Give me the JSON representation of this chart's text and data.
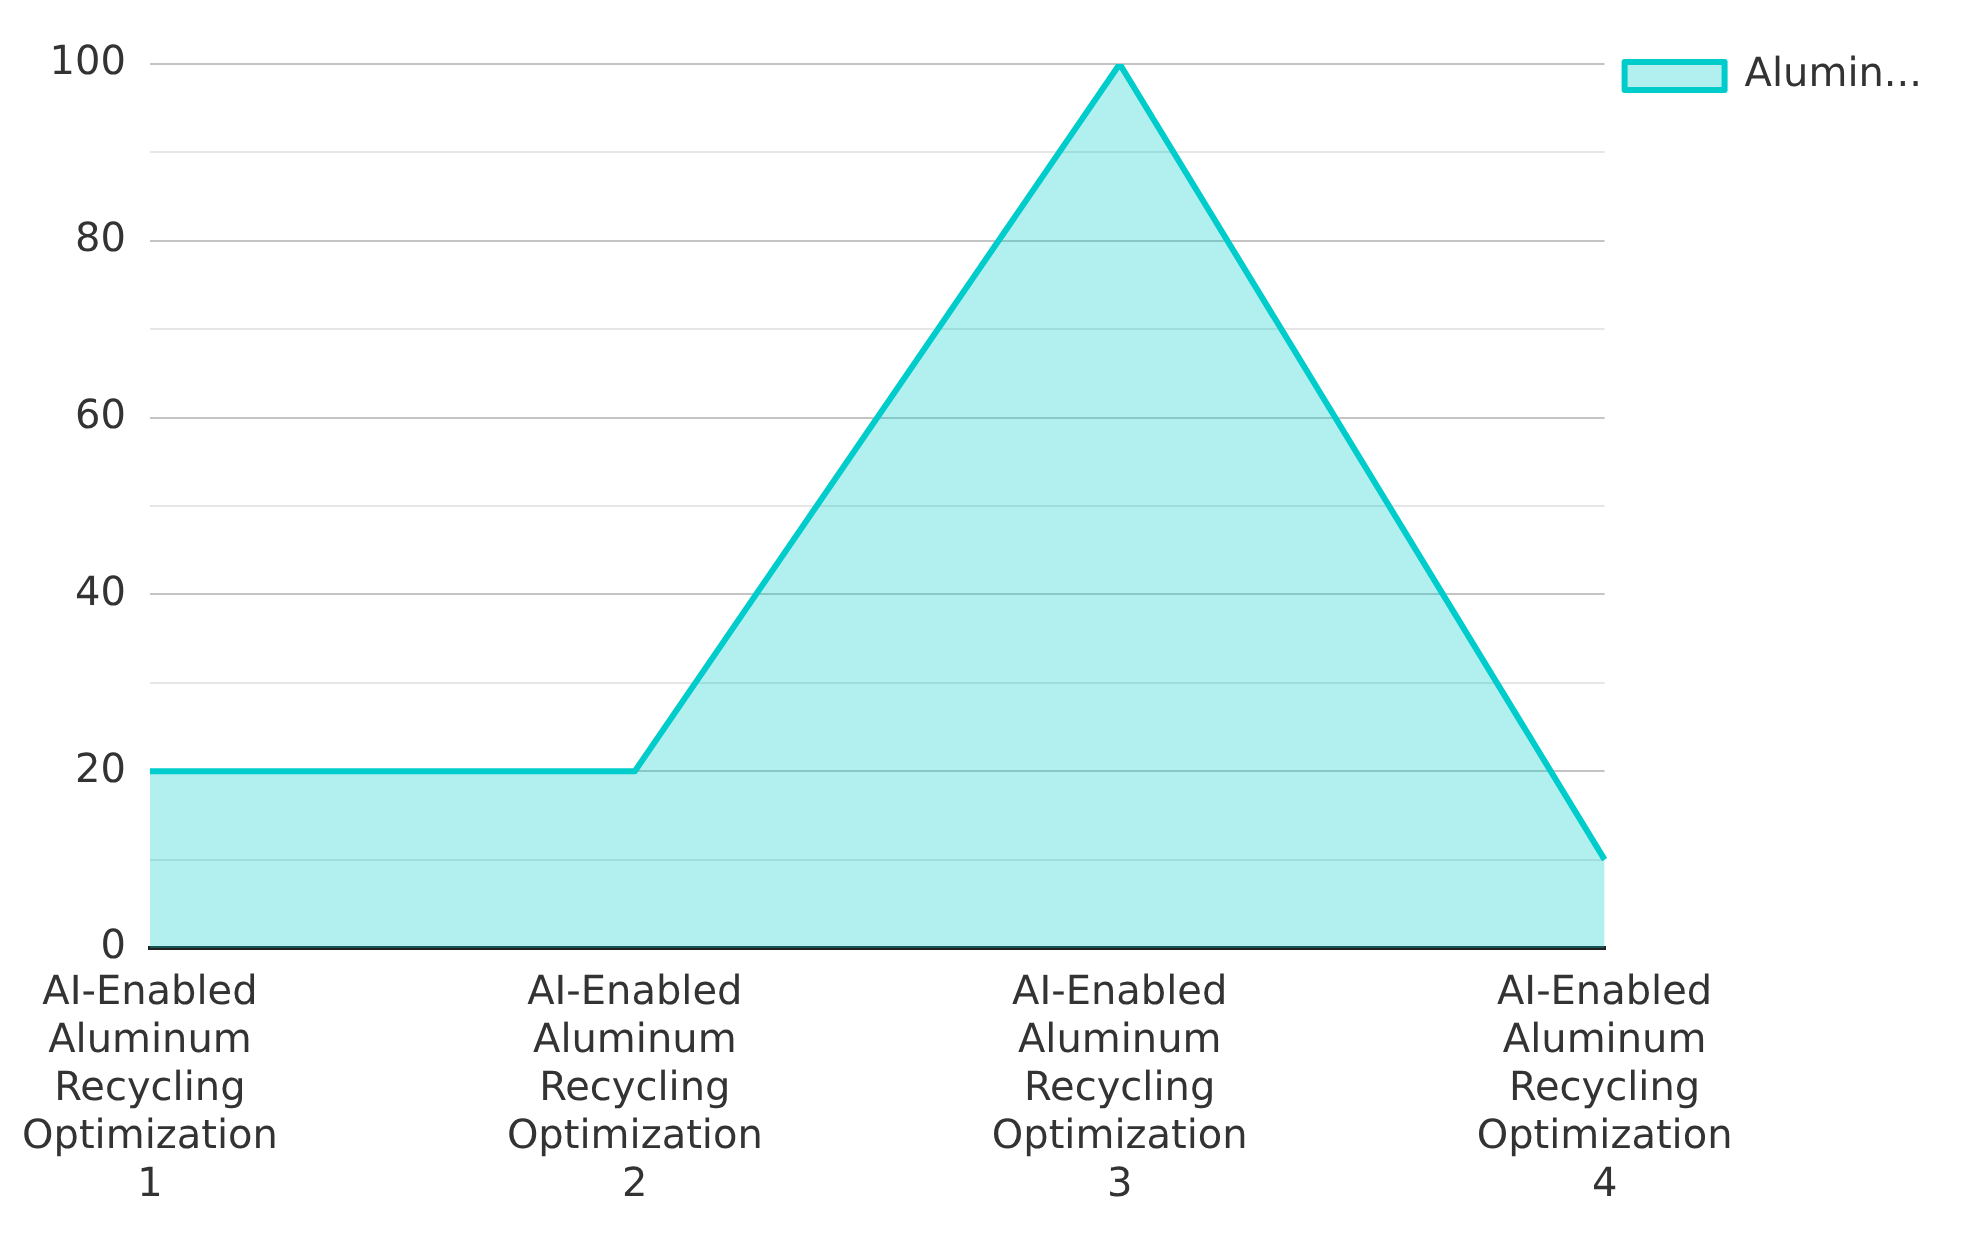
{
  "chart_data": {
    "type": "area",
    "categories": [
      "AI-Enabled Aluminum Recycling Optimization 1",
      "AI-Enabled Aluminum Recycling Optimization 2",
      "AI-Enabled Aluminum Recycling Optimization 3",
      "AI-Enabled Aluminum Recycling Optimization 4"
    ],
    "series": [
      {
        "name": "Alumin...",
        "color": "#00cccc",
        "values": [
          20,
          20,
          100,
          10
        ]
      }
    ],
    "ylim": [
      0,
      100
    ],
    "yticks": [
      0,
      {
        "value": 10,
        "label": null
      },
      20,
      {
        "value": 30,
        "label": null
      },
      40,
      {
        "value": 50,
        "label": null
      },
      60,
      {
        "value": 70,
        "label": null
      },
      80,
      {
        "value": 90,
        "label": null
      },
      100
    ],
    "grid": "y",
    "legend": "top right",
    "marker": "none"
  }
}
